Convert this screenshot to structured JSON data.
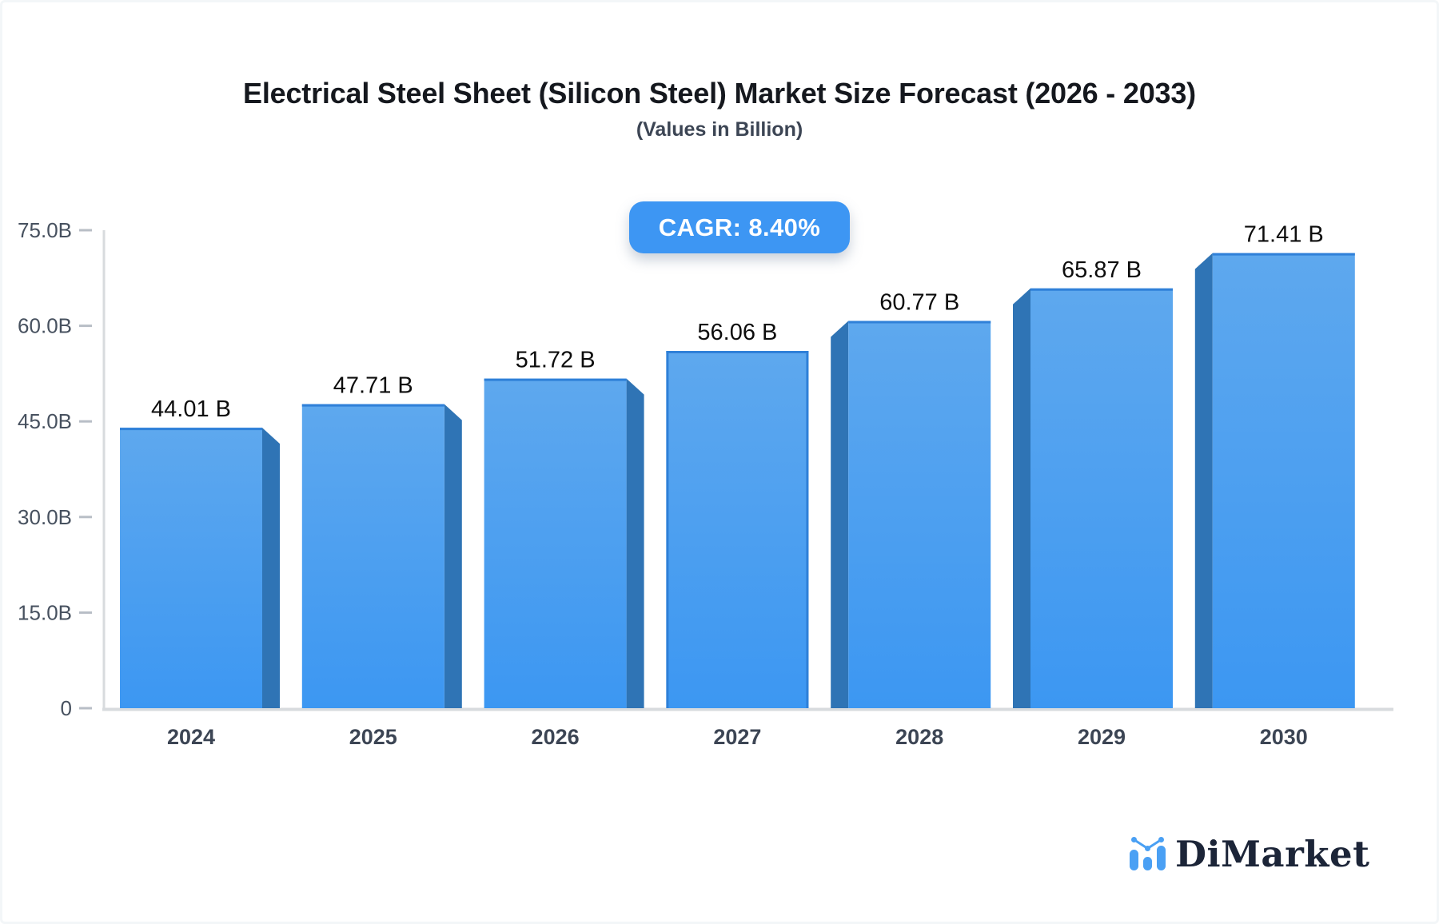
{
  "header": {
    "title": "Electrical Steel Sheet (Silicon Steel) Market Size Forecast (2026 - 2033)",
    "subtitle": "(Values in Billion)"
  },
  "badge": {
    "label": "CAGR: 8.40%"
  },
  "chart_data": {
    "type": "bar",
    "categories": [
      "2024",
      "2025",
      "2026",
      "2027",
      "2028",
      "2029",
      "2030"
    ],
    "values": [
      44.01,
      47.71,
      51.72,
      56.06,
      60.77,
      65.87,
      71.41
    ],
    "value_labels": [
      "44.01 B",
      "47.71 B",
      "51.72 B",
      "56.06 B",
      "60.77 B",
      "65.87 B",
      "71.41 B"
    ],
    "title": "Electrical Steel Sheet (Silicon Steel) Market Size Forecast (2026 - 2033)",
    "subtitle": "(Values in Billion)",
    "xlabel": "",
    "ylabel": "",
    "ylim": [
      0,
      75
    ],
    "yticks": [
      {
        "label": "0",
        "value": 0
      },
      {
        "label": "15.0B",
        "value": 15
      },
      {
        "label": "30.0B",
        "value": 30
      },
      {
        "label": "45.0B",
        "value": 45
      },
      {
        "label": "60.0B",
        "value": 60
      },
      {
        "label": "75.0B",
        "value": 75
      }
    ],
    "grid": false,
    "legend": false,
    "style_note": "3D perspective bars, darker side face angled toward chart center"
  },
  "logo": {
    "text": "DiMarket",
    "icon": "bar-chart-trend-icon"
  },
  "colors": {
    "accent": "#3d96f3",
    "badge_text": "#ffffff",
    "title_color": "#15181e",
    "subtitle_color": "#3c4554",
    "value_label": "#0d0d0d",
    "year_label": "#3c4554",
    "tick_label": "#47515f",
    "axis_line": "#d8dbde",
    "tick_dash": "#b8bec6",
    "bar_face_top": "#5ea8ee",
    "bar_face_bottom": "#3c97f2",
    "bar_side": "#2f74b5",
    "bar_edge": "#2f80d8",
    "logo_text": "#1c2538",
    "logo_icon": "#4aa0f4",
    "page_border": "#f3f6f8"
  }
}
